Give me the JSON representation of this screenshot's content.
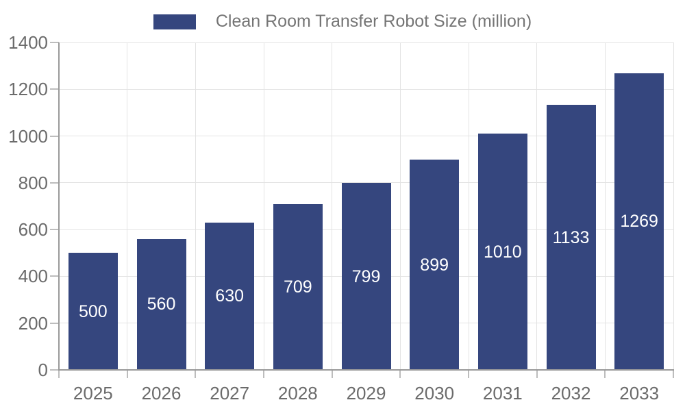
{
  "legend": {
    "series_label": "Clean Room Transfer Robot Size (million)"
  },
  "chart_data": {
    "type": "bar",
    "title": "Clean Room Transfer Robot Size (million)",
    "series_name": "Clean Room Transfer Robot Size (million)",
    "categories": [
      "2025",
      "2026",
      "2027",
      "2028",
      "2029",
      "2030",
      "2031",
      "2032",
      "2033"
    ],
    "values": [
      500,
      560,
      630,
      709,
      799,
      899,
      1010,
      1133,
      1269
    ],
    "value_labels": [
      "500",
      "560",
      "630",
      "709",
      "799",
      "899",
      "1010",
      "1133",
      "1269"
    ],
    "xlabel": "",
    "ylabel": "",
    "ylim": [
      0,
      1400
    ],
    "yticks": [
      0,
      200,
      400,
      600,
      800,
      1000,
      1200,
      1400
    ],
    "grid": true,
    "legend_position": "top-center",
    "value_label_placement": "inside-center",
    "colors": {
      "bar": "#35467E",
      "value_label_text": "#ffffff",
      "grid_line": "#e3e3e3",
      "axis_line": "#9a9a9a",
      "tick_mark": "#bdbdbd",
      "tick_label_text": "#6b6b6b",
      "legend_text": "#757575",
      "background": "#ffffff"
    }
  }
}
